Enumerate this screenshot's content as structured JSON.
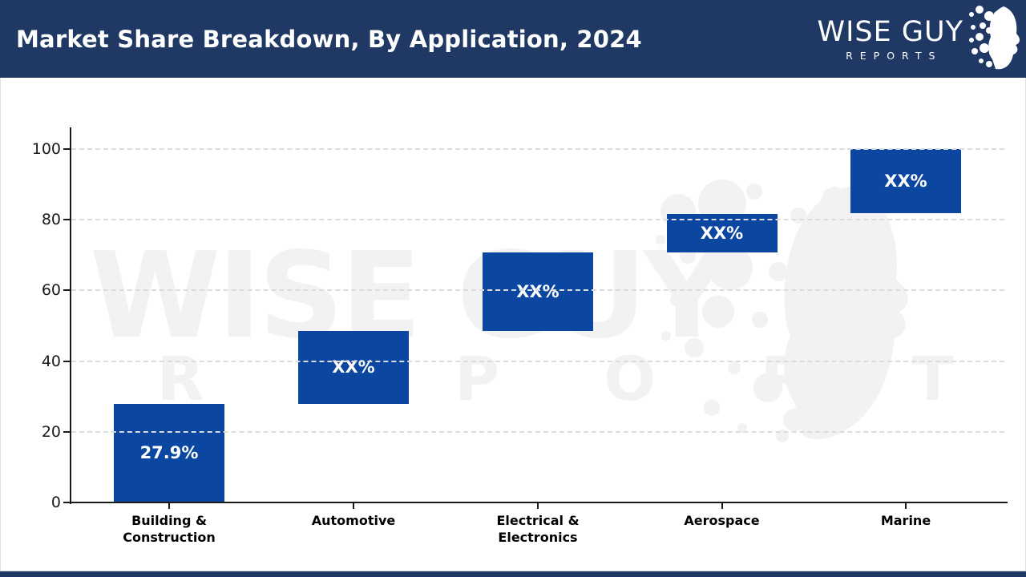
{
  "header": {
    "brand_line1": "WISE GUY",
    "brand_line2": "REPORTS"
  },
  "watermark": {
    "line1": "WISE GUY",
    "line2": "R E P O R T S"
  },
  "chart_data": {
    "type": "bar",
    "variant": "waterfall-floating-bars",
    "title": "Market Share Breakdown, By Application, 2024",
    "xlabel": "",
    "ylabel": "",
    "categories": [
      "Building &\nConstruction",
      "Automotive",
      "Electrical &\nElectronics",
      "Aerospace",
      "Marine"
    ],
    "bars": [
      {
        "category": "Building & Construction",
        "start": 0,
        "end": 27.9,
        "label": "27.9%"
      },
      {
        "category": "Automotive",
        "start": 27.9,
        "end": 48.6,
        "label": "XX%"
      },
      {
        "category": "Electrical & Electronics",
        "start": 48.5,
        "end": 70.6,
        "label": "XX%"
      },
      {
        "category": "Aerospace",
        "start": 70.8,
        "end": 81.5,
        "label": "XX%"
      },
      {
        "category": "Marine",
        "start": 81.7,
        "end": 100,
        "label": "XX%"
      }
    ],
    "yticks": [
      0,
      20,
      40,
      60,
      80,
      100
    ],
    "ylim": [
      0,
      106
    ],
    "grid": "horizontal-dashed-over-bars",
    "legend": "none",
    "colors": {
      "bar": "#0B47A1",
      "bar_label": "#FFFFFF",
      "header_bg": "#1F3864",
      "axis": "#1A1A1A",
      "grid": "#DCDCDC"
    }
  }
}
